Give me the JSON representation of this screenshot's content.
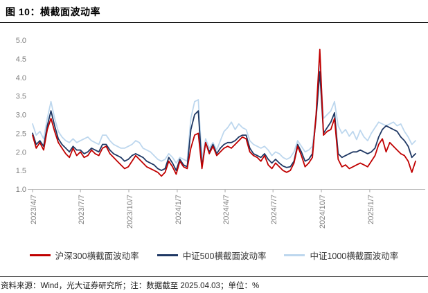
{
  "header": {
    "title": "图 10：横截面波动率"
  },
  "footer": {
    "text": "资料来源：Wind，光大证券研究所；注：数据截至 2025.04.03；单位：%"
  },
  "chart_data": {
    "type": "line",
    "title": "图 10：横截面波动率",
    "unit": "%",
    "grid": "off",
    "legend_position": "bottom-center",
    "ylim": [
      1.0,
      5.0
    ],
    "y_tick_labels": [
      "1.0",
      "1.5",
      "2.0",
      "2.5",
      "3.0",
      "3.5",
      "4.0",
      "4.5",
      "5.0"
    ],
    "y_tick_values": [
      1.0,
      1.5,
      2.0,
      2.5,
      3.0,
      3.5,
      4.0,
      4.5,
      5.0
    ],
    "x_tick_labels": [
      "2023/4/7",
      "2023/7/7",
      "2023/10/7",
      "2024/1/7",
      "2024/4/7",
      "2024/7/7",
      "2024/10/7",
      "2025/1/7"
    ],
    "x_tick_weeks": [
      0,
      13,
      26.14,
      39.29,
      52.29,
      65.29,
      78.43,
      91.57
    ],
    "x_total_weeks": 104,
    "axis_colors": {
      "axis_line": "#BFBFBF",
      "tick_mark": "#A6A6A6",
      "tick_label": "#7F7F7F"
    },
    "series": [
      {
        "name": "沪深300横截面波动率",
        "color": "#C00000",
        "values": [
          2.45,
          2.1,
          2.25,
          2.05,
          2.6,
          2.9,
          2.55,
          2.25,
          2.1,
          1.95,
          1.85,
          2.1,
          1.9,
          2.0,
          1.85,
          1.9,
          2.05,
          1.95,
          1.9,
          2.1,
          2.15,
          1.95,
          1.85,
          1.75,
          1.65,
          1.55,
          1.6,
          1.75,
          1.9,
          1.8,
          1.7,
          1.6,
          1.55,
          1.5,
          1.45,
          1.35,
          1.45,
          1.75,
          1.6,
          1.4,
          1.75,
          1.6,
          1.55,
          2.1,
          2.45,
          2.5,
          1.55,
          2.25,
          1.95,
          2.15,
          1.9,
          2.0,
          2.1,
          2.15,
          2.1,
          2.2,
          2.3,
          2.4,
          2.35,
          2.0,
          1.9,
          1.85,
          1.75,
          1.9,
          1.65,
          1.55,
          1.7,
          1.6,
          1.5,
          1.45,
          1.5,
          1.7,
          2.15,
          1.9,
          1.6,
          1.7,
          1.85,
          3.0,
          4.75,
          2.45,
          2.55,
          2.6,
          2.9,
          1.8,
          1.6,
          1.65,
          1.55,
          1.6,
          1.65,
          1.7,
          1.65,
          1.6,
          1.75,
          1.9,
          2.2,
          2.35,
          2.0,
          2.25,
          2.15,
          2.05,
          1.95,
          1.9,
          1.75,
          1.45,
          1.75
        ]
      },
      {
        "name": "中证500横截面波动率",
        "color": "#1F3864",
        "values": [
          2.5,
          2.2,
          2.3,
          2.15,
          2.7,
          3.1,
          2.7,
          2.35,
          2.2,
          2.1,
          2.0,
          2.15,
          2.05,
          2.05,
          1.95,
          2.0,
          2.1,
          2.05,
          2.0,
          2.2,
          2.2,
          2.05,
          1.95,
          1.9,
          1.85,
          1.75,
          1.8,
          1.9,
          1.95,
          1.9,
          1.85,
          1.75,
          1.7,
          1.65,
          1.55,
          1.5,
          1.55,
          1.85,
          1.7,
          1.5,
          1.8,
          1.65,
          1.6,
          2.6,
          3.0,
          3.1,
          1.6,
          2.25,
          2.0,
          2.2,
          1.95,
          2.1,
          2.2,
          2.25,
          2.25,
          2.3,
          2.4,
          2.45,
          2.45,
          2.1,
          1.95,
          1.9,
          1.85,
          1.95,
          1.8,
          1.7,
          1.8,
          1.7,
          1.62,
          1.58,
          1.6,
          1.75,
          2.2,
          2.0,
          1.75,
          1.8,
          1.95,
          2.9,
          4.15,
          2.5,
          2.65,
          2.8,
          3.05,
          1.95,
          1.85,
          1.9,
          1.95,
          2.0,
          2.0,
          2.05,
          2.0,
          1.95,
          2.0,
          2.1,
          2.4,
          2.6,
          2.7,
          2.65,
          2.6,
          2.55,
          2.4,
          2.3,
          2.15,
          1.85,
          1.95
        ]
      },
      {
        "name": "中证1000横截面波动率",
        "color": "#BDD7EE",
        "values": [
          2.75,
          2.45,
          2.55,
          2.35,
          2.9,
          3.35,
          2.9,
          2.55,
          2.4,
          2.3,
          2.25,
          2.35,
          2.25,
          2.3,
          2.35,
          2.4,
          2.3,
          2.25,
          2.2,
          2.45,
          2.45,
          2.3,
          2.2,
          2.15,
          2.1,
          2.1,
          2.15,
          2.2,
          2.3,
          2.25,
          2.1,
          2.05,
          2.0,
          1.9,
          1.8,
          1.75,
          1.8,
          1.95,
          1.85,
          1.7,
          1.85,
          1.8,
          1.75,
          2.9,
          3.35,
          3.4,
          1.8,
          2.35,
          2.1,
          2.25,
          2.05,
          2.3,
          2.55,
          2.65,
          2.8,
          2.6,
          2.75,
          2.65,
          2.6,
          2.3,
          2.2,
          2.15,
          2.1,
          2.15,
          2.05,
          1.9,
          2.0,
          1.95,
          1.85,
          1.8,
          1.85,
          2.0,
          2.3,
          2.15,
          2.0,
          2.05,
          2.15,
          3.0,
          4.35,
          2.9,
          3.0,
          3.1,
          3.35,
          2.7,
          2.5,
          2.6,
          2.42,
          2.55,
          2.33,
          2.58,
          2.4,
          2.3,
          2.5,
          2.65,
          2.8,
          2.75,
          2.7,
          2.75,
          2.8,
          2.7,
          2.75,
          2.55,
          2.4,
          2.2,
          2.3
        ]
      }
    ]
  }
}
